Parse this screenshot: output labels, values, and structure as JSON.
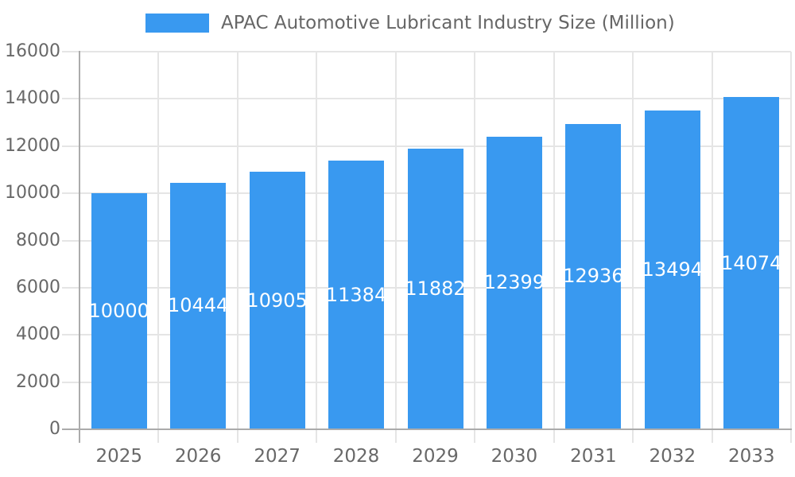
{
  "chart_data": {
    "type": "bar",
    "title": "APAC Automotive Lubricant Industry Size (Million)",
    "legend": {
      "label": "APAC Automotive Lubricant Industry Size (Million)",
      "position": "top"
    },
    "categories": [
      "2025",
      "2026",
      "2027",
      "2028",
      "2029",
      "2030",
      "2031",
      "2032",
      "2033"
    ],
    "values": [
      10000,
      10444,
      10905,
      11384,
      11882,
      12399,
      12936,
      13494,
      14074
    ],
    "bar_value_labels": [
      "10000",
      "10444",
      "10905",
      "11384",
      "11882",
      "12399",
      "12936",
      "13494",
      "14074"
    ],
    "xlabel": "",
    "ylabel": "",
    "ylim": [
      0,
      16000
    ],
    "yticks": [
      0,
      2000,
      4000,
      6000,
      8000,
      10000,
      12000,
      14000,
      16000
    ],
    "ytick_labels": [
      "0",
      "2000",
      "4000",
      "6000",
      "8000",
      "10000",
      "12000",
      "14000",
      "16000"
    ],
    "grid": "on",
    "colors": {
      "bar": "#3999F0",
      "bar_label": "#ffffff",
      "grid": "#e5e5e5",
      "axis": "#ababab",
      "text": "#686868",
      "legend_text": "#666666",
      "background": "#ffffff"
    }
  }
}
